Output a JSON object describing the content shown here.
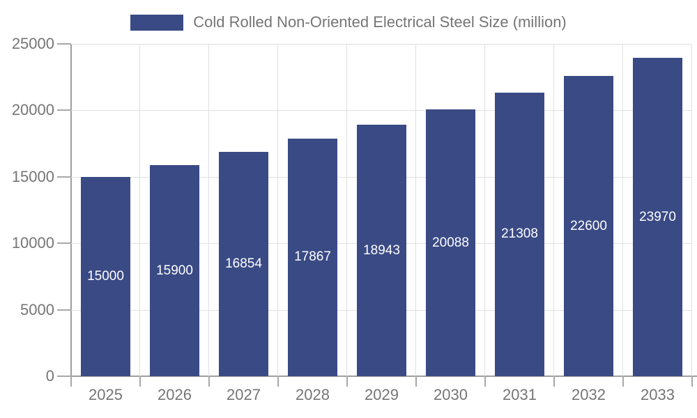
{
  "chart_data": {
    "type": "bar",
    "series_name": "Cold Rolled Non-Oriented Electrical Steel Size (million)",
    "categories": [
      "2025",
      "2026",
      "2027",
      "2028",
      "2029",
      "2030",
      "2031",
      "2032",
      "2033"
    ],
    "values": [
      15000,
      15900,
      16854,
      17867,
      18943,
      20088,
      21308,
      22600,
      23970
    ],
    "value_labels_shown": true,
    "xlabel": "",
    "ylabel": "",
    "ylim": [
      0,
      25000
    ],
    "yticks": [
      0,
      5000,
      10000,
      15000,
      20000,
      25000
    ],
    "grid": true,
    "legend_position": "top",
    "colors": {
      "bar": "#3A4A85",
      "bar_label": "#FFFFFF",
      "axis_text": "#757575",
      "axis_line": "#9E9E9E",
      "tick_line": "#A8A8A8",
      "gridline": "#E0E0E0",
      "background": "#FFFFFF"
    }
  }
}
